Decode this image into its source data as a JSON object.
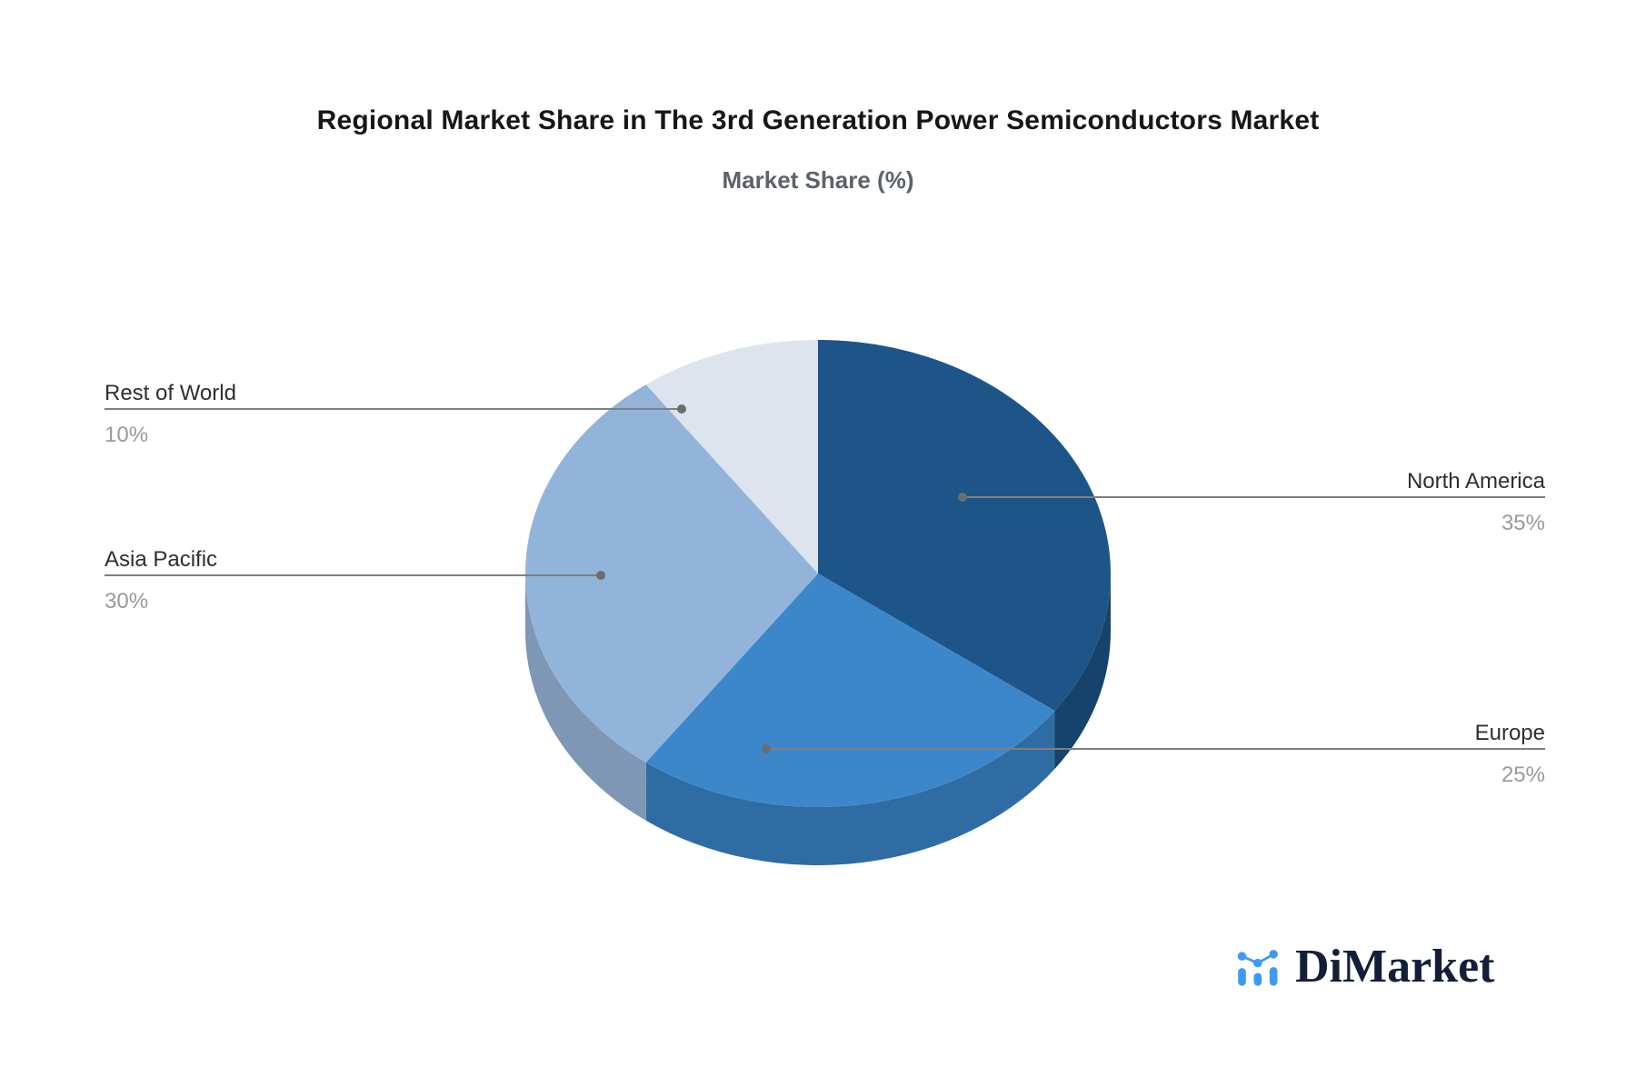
{
  "chart_data": {
    "type": "pie",
    "style": "3d",
    "title": "Regional Market Share in The 3rd Generation Power Semiconductors Market",
    "subtitle": "Market Share (%)",
    "unit": "%",
    "categories": [
      "North America",
      "Europe",
      "Asia Pacific",
      "Rest of World"
    ],
    "values": [
      35,
      25,
      30,
      10
    ],
    "slices": [
      {
        "label": "North America",
        "value": 35,
        "pct_label": "35%",
        "color": "#1D5588",
        "side_color": "#16436B",
        "callout_side": "right"
      },
      {
        "label": "Europe",
        "value": 25,
        "pct_label": "25%",
        "color": "#3C87C9",
        "side_color": "#2E6CA3",
        "callout_side": "right"
      },
      {
        "label": "Asia Pacific",
        "value": 30,
        "pct_label": "30%",
        "color": "#93B4DA",
        "side_color": "#7E97B4",
        "callout_side": "left"
      },
      {
        "label": "Rest of World",
        "value": 10,
        "pct_label": "10%",
        "color": "#DDE4EE",
        "side_color": "#C2CDDD",
        "callout_side": "left"
      }
    ],
    "start_angle_deg": 0,
    "direction": "clockwise",
    "legend_position": "callout-labels",
    "colors": {
      "leader_line": "#7F7F7F",
      "leader_dot": "#6D6D6D",
      "label_text": "#2F2F2F",
      "percent_text": "#9A9A9A",
      "title_text": "#171717",
      "subtitle_text": "#59636E"
    }
  },
  "branding": {
    "logo_text": "DiMarket",
    "logo_icon": "bar-line-chart-icon",
    "logo_text_color": "#131F38",
    "logo_icon_color": "#3D9BF5"
  }
}
